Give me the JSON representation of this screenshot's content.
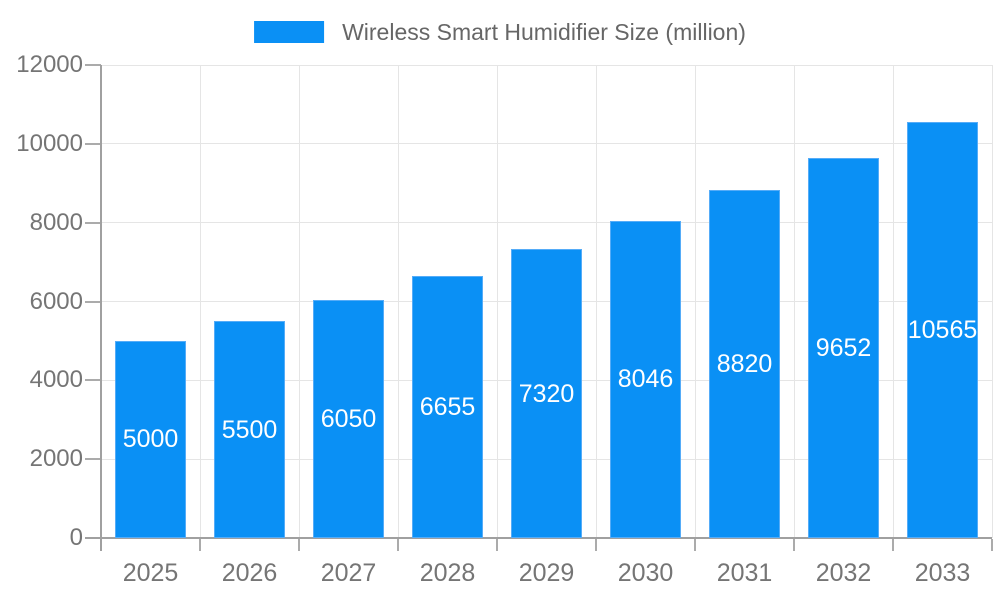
{
  "chart_data": {
    "type": "bar",
    "title": "Wireless Smart Humidifier Size (million)",
    "series_name": "Wireless Smart Humidifier Size (million)",
    "categories": [
      "2025",
      "2026",
      "2027",
      "2028",
      "2029",
      "2030",
      "2031",
      "2032",
      "2033"
    ],
    "values": [
      5000,
      5500,
      6050,
      6655,
      7320,
      8046,
      8820,
      9652,
      10565
    ],
    "xlabel": "",
    "ylabel": "",
    "ylim": [
      0,
      12000
    ],
    "ytick_step": 2000,
    "ytick_labels": [
      "0",
      "2000",
      "4000",
      "6000",
      "8000",
      "10000",
      "12000"
    ],
    "grid": true,
    "legend_position": "top-center",
    "value_labels": "inside-center-white",
    "colors": {
      "bar": "#0a90f5",
      "bar_border": "#55acf8",
      "grid_line": "#e5e5e5",
      "axis_line": "#a0a0a0",
      "tick_line": "#ababab",
      "axis_label": "#757575",
      "legend_text": "#666666",
      "value_label": "#ffffff",
      "background": "#ffffff"
    }
  }
}
